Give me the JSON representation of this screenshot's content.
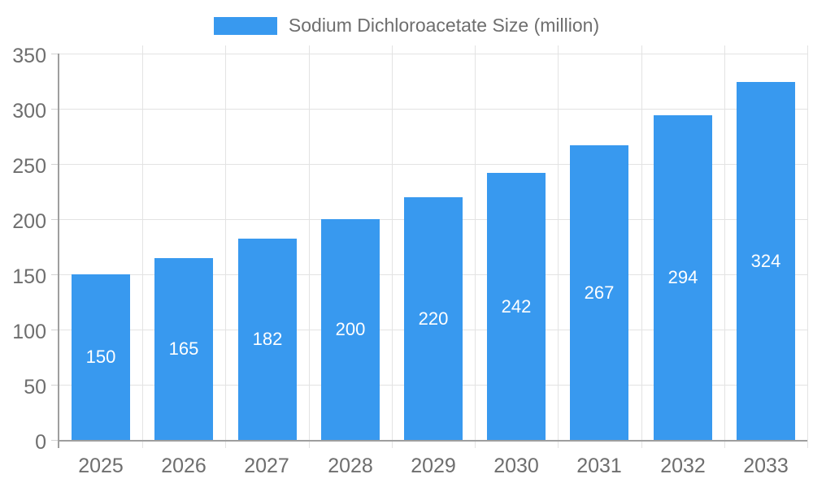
{
  "chart_data": {
    "type": "bar",
    "title": "Sodium Dichloroacetate Size (million)",
    "categories": [
      "2025",
      "2026",
      "2027",
      "2028",
      "2029",
      "2030",
      "2031",
      "2032",
      "2033"
    ],
    "values": [
      150,
      165,
      182,
      200,
      220,
      242,
      267,
      294,
      324
    ],
    "xlabel": "",
    "ylabel": "",
    "ylim": [
      0,
      350
    ],
    "ytick_step": 50,
    "ytick_labels": [
      "0",
      "50",
      "100",
      "150",
      "200",
      "250",
      "300",
      "350"
    ],
    "grid": true,
    "legend_position": "top",
    "value_labels_shown": true,
    "colors": {
      "bar": "#3899EF",
      "grid_line": "#e3e3e3",
      "tick_line": "#d2d2d2",
      "axis_line": "#9e9e9e",
      "tick_label_text": "#6e6e6e",
      "legend_text": "#6e6e6e",
      "value_label_text": "#ffffff",
      "background": "#ffffff"
    }
  }
}
